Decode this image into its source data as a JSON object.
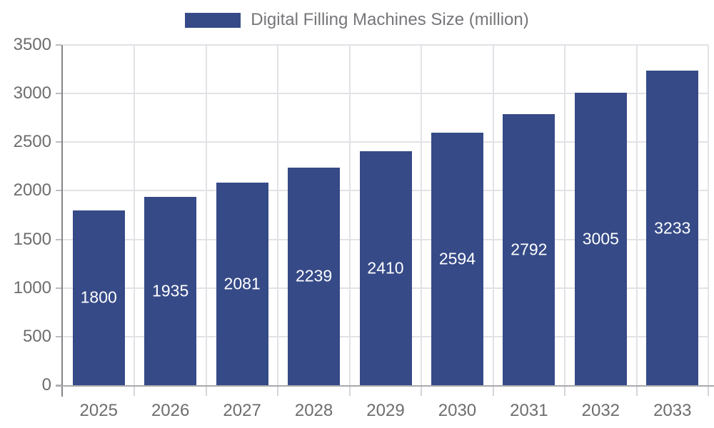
{
  "legend": {
    "label": "Digital Filling Machines Size (million)"
  },
  "chart_data": {
    "type": "bar",
    "title": "Digital Filling Machines Size (million)",
    "categories": [
      "2025",
      "2026",
      "2027",
      "2028",
      "2029",
      "2030",
      "2031",
      "2032",
      "2033"
    ],
    "values": [
      1800,
      1935,
      2081,
      2239,
      2410,
      2594,
      2792,
      3005,
      3233
    ],
    "xlabel": "",
    "ylabel": "",
    "ylim": [
      0,
      3500
    ],
    "yticks": [
      0,
      500,
      1000,
      1500,
      2000,
      2500,
      3000,
      3500
    ],
    "grid": true,
    "legend_position": "top",
    "value_labels": "inside-center"
  },
  "colors": {
    "bar": "#364a87",
    "bar_value_text": "#ffffff",
    "legend_text": "#76767a",
    "axis_text": "#6d6d70",
    "grid_line": "#e2e2e7",
    "y_axis_line": "#85858a",
    "x_axis_line": "#a9a9ad",
    "y_tick": "#bcbcc0",
    "x_tick": "#d6d6da",
    "background": "#ffffff"
  }
}
